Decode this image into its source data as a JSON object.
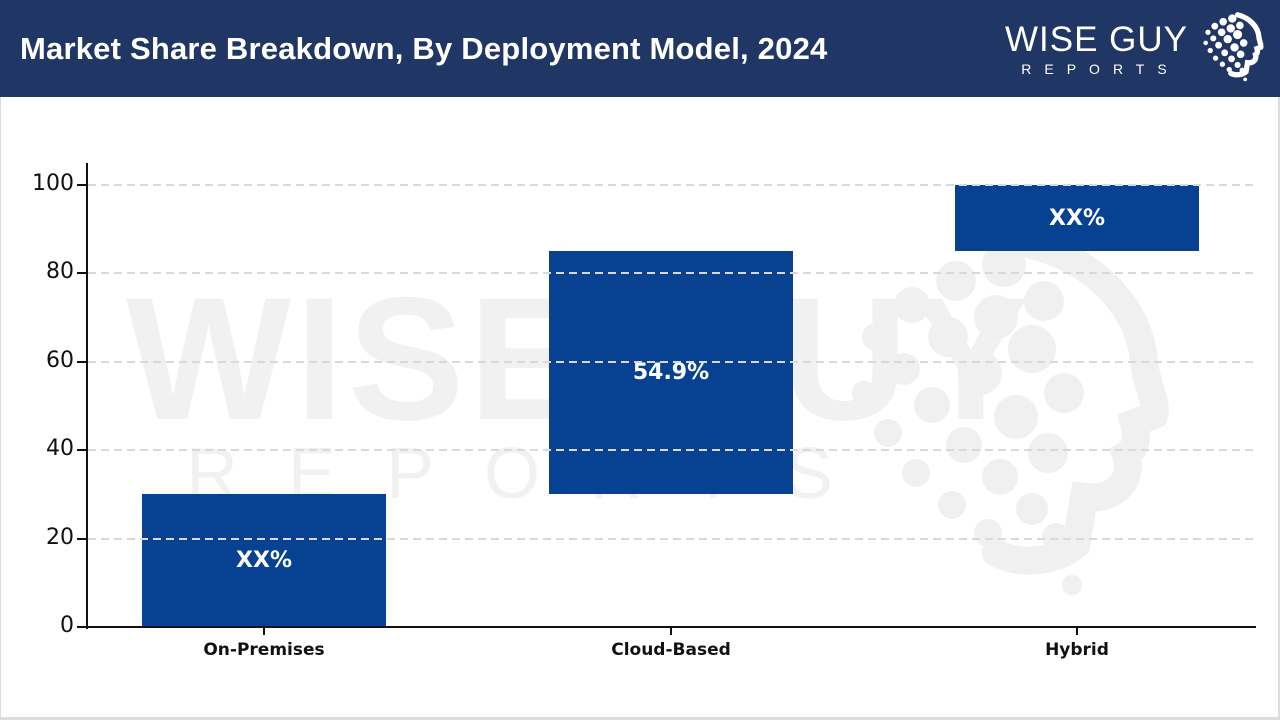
{
  "header": {
    "title": "Market Share Breakdown, By Deployment Model, 2024",
    "background": "#203765",
    "logo": {
      "line1": "WISE GUY",
      "line2": "REPORTS"
    }
  },
  "watermark": {
    "line1": "WISE GUY",
    "line2": "REPORTS"
  },
  "chart_data": {
    "type": "bar",
    "subtype": "floating_segment_bars",
    "title": "Market Share Breakdown, By Deployment Model, 2024",
    "categories": [
      "On-Premises",
      "Cloud-Based",
      "Hybrid"
    ],
    "segments": [
      {
        "category": "On-Premises",
        "from": 0,
        "to": 30.1,
        "value": null,
        "label": "XX%"
      },
      {
        "category": "Cloud-Based",
        "from": 30.1,
        "to": 85,
        "value": 54.9,
        "label": "54.9%"
      },
      {
        "category": "Hybrid",
        "from": 85,
        "to": 100,
        "value": null,
        "label": "XX%"
      }
    ],
    "yticks": [
      0,
      20,
      40,
      60,
      80,
      100
    ],
    "ylim": [
      0,
      105
    ],
    "xlabel": "",
    "ylabel": "",
    "legend": "none",
    "grid": {
      "axis": "y",
      "style": "dashed",
      "drawn_above_bars": true
    },
    "colors": {
      "bar": "#064291",
      "gridline": "#d9d9d9",
      "axis": "#111111",
      "tick_label": "#111111",
      "bar_label": "#ffffff",
      "header_bg": "#203765",
      "watermark": "#f1f1f1"
    }
  }
}
